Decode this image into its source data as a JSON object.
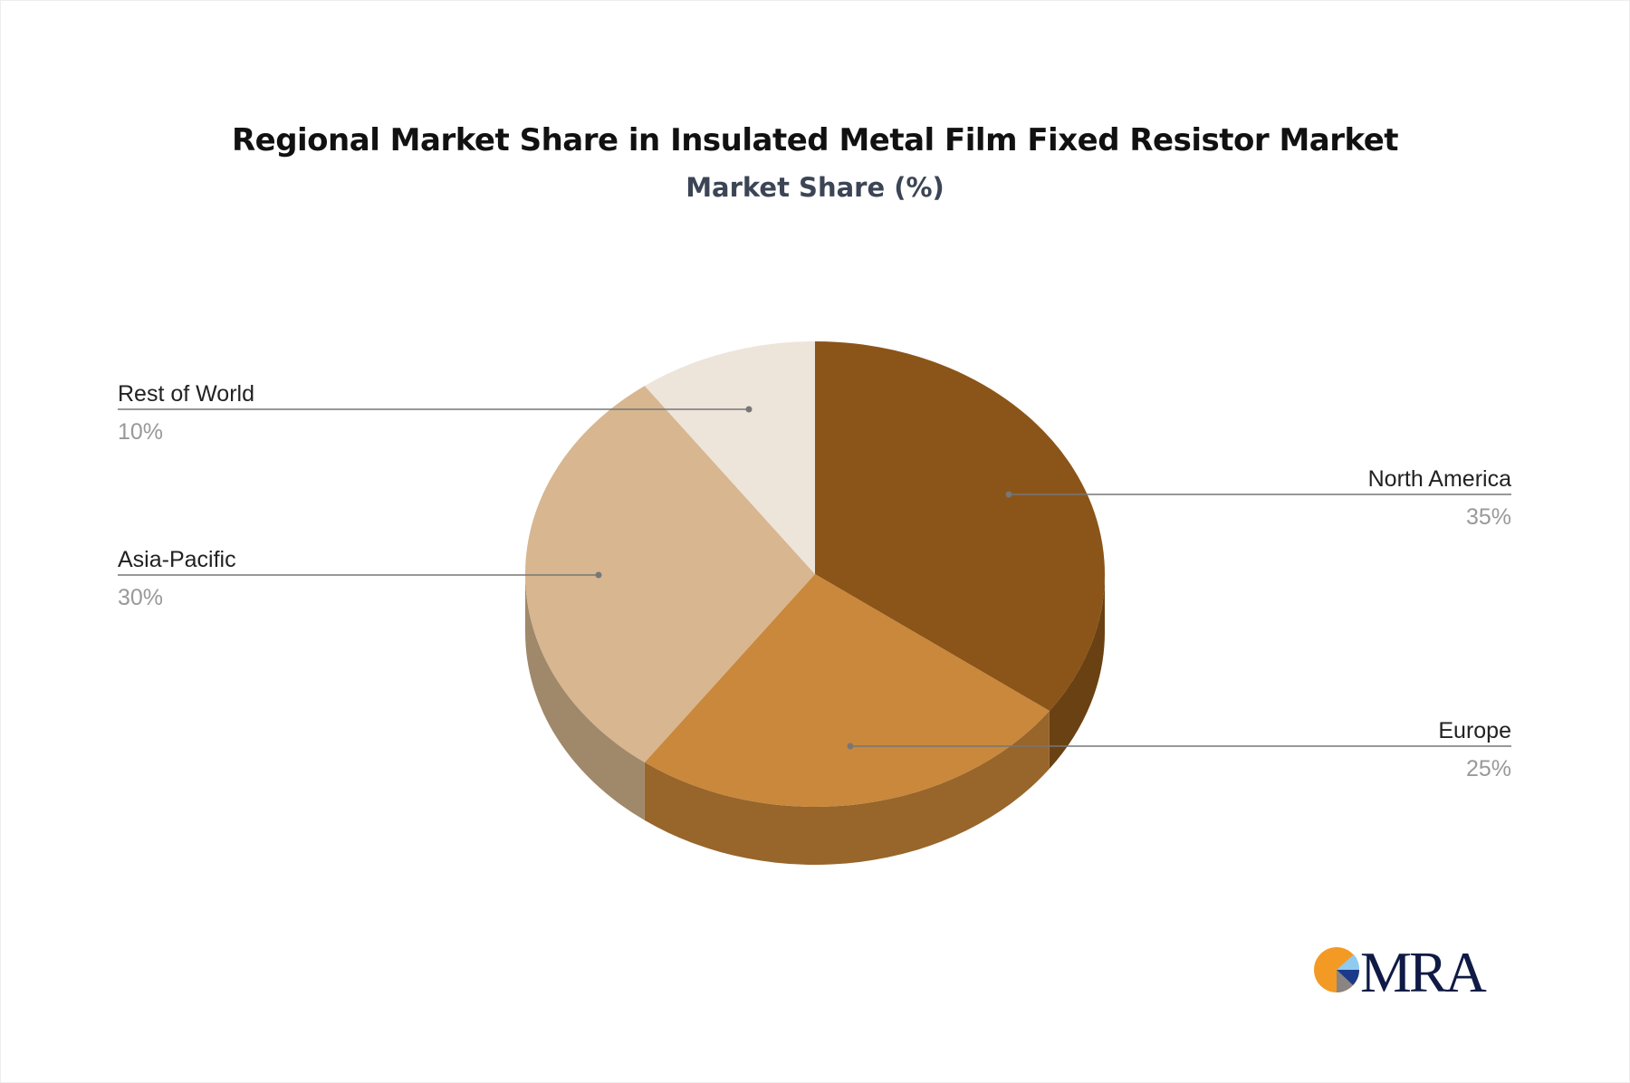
{
  "chart_data": {
    "type": "pie",
    "style": "3d",
    "title": "Regional Market Share in Insulated Metal Film Fixed Resistor Market",
    "subtitle": "Market Share (%)",
    "slices": [
      {
        "label": "North America",
        "value": 35,
        "display": "35%",
        "color": "#8B5519",
        "side_color": "#6A4112"
      },
      {
        "label": "Europe",
        "value": 25,
        "display": "25%",
        "color": "#C9883B",
        "side_color": "#98652B"
      },
      {
        "label": "Asia-Pacific",
        "value": 30,
        "display": "30%",
        "color": "#D7B690",
        "side_color": "#A0886B"
      },
      {
        "label": "Rest of World",
        "value": 10,
        "display": "10%",
        "color": "#EDE4DA",
        "side_color": "#BFB3A6"
      }
    ]
  },
  "logo": {
    "text": "MRA",
    "colors": [
      "#F39A25",
      "#8FCBEF",
      "#1C3A8A",
      "#8A8582",
      "#0F1A45"
    ]
  }
}
